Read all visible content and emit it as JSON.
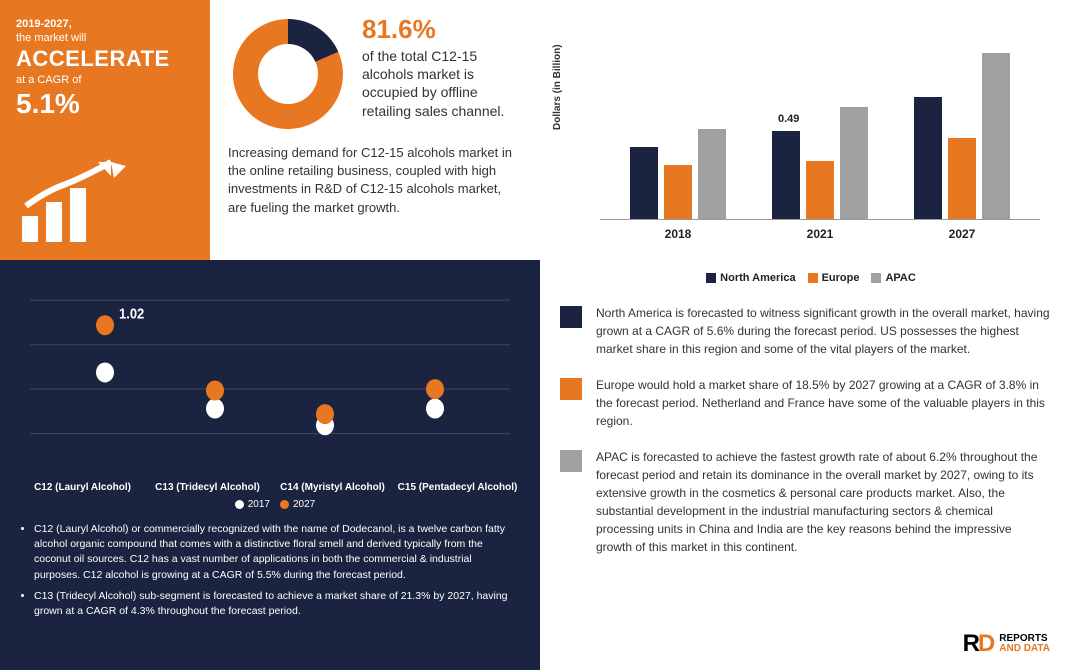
{
  "colors": {
    "orange": "#e87722",
    "navy": "#1a2340",
    "gray": "#a0a0a0",
    "white": "#ffffff",
    "text": "#333333"
  },
  "accelerate_box": {
    "period": "2019-2027,",
    "line1": "the market will",
    "headline": "ACCELERATE",
    "line2": "at a CAGR of",
    "cagr": "5.1%",
    "bg": "#e87722"
  },
  "donut": {
    "percent_label": "81.6%",
    "percent_value": 81.6,
    "desc": "of the total C12-15 alcohols market is occupied by offline retailing sales channel.",
    "body": "Increasing demand for C12-15 alcohols market in the online retailing business, coupled with high investments in R&D of C12-15 alcohols market, are fueling the market growth.",
    "color_main": "#e87722",
    "color_rest": "#1a2340",
    "inner_bg": "#ffffff"
  },
  "scatter": {
    "bg": "#1a2340",
    "ymax": 1.2,
    "callout": "1.02",
    "categories": [
      "C12 (Lauryl Alcohol)",
      "C13 (Tridecyl Alcohol)",
      "C14 (Myristyl Alcohol)",
      "C15 (Pentadecyl Alcohol)"
    ],
    "series": [
      {
        "name": "2017",
        "color": "#ffffff",
        "values": [
          0.68,
          0.42,
          0.3,
          0.42
        ]
      },
      {
        "name": "2027",
        "color": "#e87722",
        "values": [
          1.02,
          0.55,
          0.38,
          0.56
        ]
      }
    ],
    "bullets": [
      "C12 (Lauryl Alcohol) or commercially recognized with the name of Dodecanol, is a twelve carbon fatty alcohol organic compound that comes with a distinctive floral smell and derived typically from the coconut oil sources. C12 has a vast number of applications in both the commercial & industrial purposes. C12 alcohol is growing at a CAGR of 5.5% during the forecast period.",
      "C13 (Tridecyl Alcohol) sub-segment is forecasted to achieve a market share of 21.3% by 2027, having grown at a CAGR of 4.3% throughout the forecast period."
    ]
  },
  "bar_chart": {
    "ylabel": "Dollars (in Billion)",
    "ymax": 1.0,
    "callout": "0.49",
    "categories": [
      "2018",
      "2021",
      "2027"
    ],
    "series": [
      {
        "name": "North America",
        "color": "#1a2340",
        "values": [
          0.4,
          0.49,
          0.68
        ]
      },
      {
        "name": "Europe",
        "color": "#e87722",
        "values": [
          0.3,
          0.32,
          0.45
        ]
      },
      {
        "name": "APAC",
        "color": "#a0a0a0",
        "values": [
          0.5,
          0.62,
          0.92
        ]
      }
    ]
  },
  "regions": [
    {
      "color": "#1a2340",
      "text": "North America is forecasted to witness significant growth in the overall market, having grown at a CAGR of 5.6% during the forecast period. US possesses the highest market share in this region and some of the vital players of the market."
    },
    {
      "color": "#e87722",
      "text": "Europe would hold a market share of 18.5% by 2027 growing at a CAGR of 3.8% in the forecast period. Netherland and France have some of the valuable players in this region."
    },
    {
      "color": "#a0a0a0",
      "text": "APAC is forecasted to achieve the fastest growth rate of about 6.2% throughout the forecast period and retain its dominance in the overall market by 2027, owing to its extensive growth in the cosmetics & personal care products market. Also, the substantial development in the industrial manufacturing sectors & chemical processing units in China and India are the key reasons behind the impressive growth of this market in this continent."
    }
  ],
  "logo": {
    "line1": "REPORTS",
    "line2": "AND DATA"
  }
}
